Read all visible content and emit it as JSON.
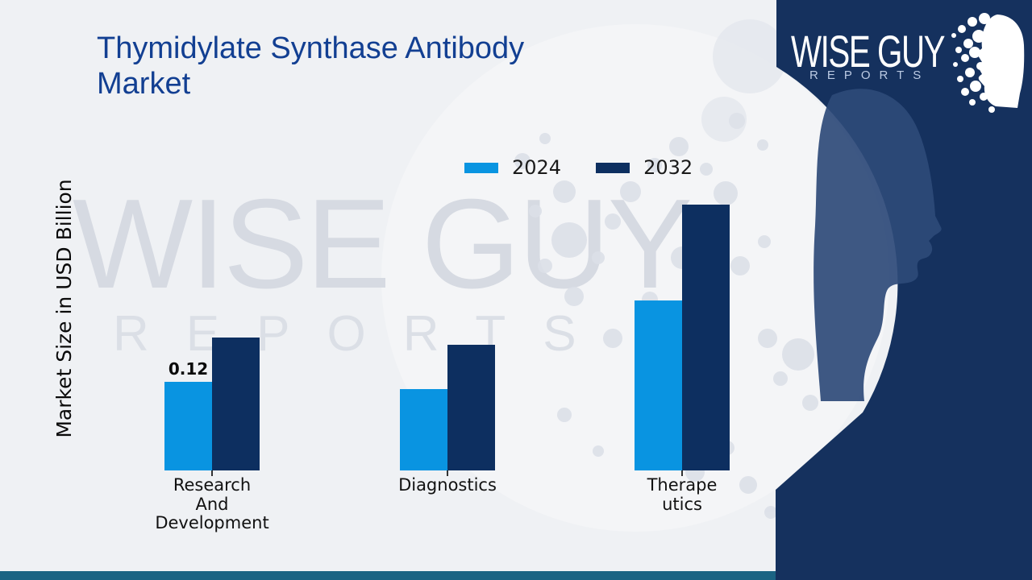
{
  "page": {
    "background": "#eff1f4",
    "accent_teal": "#1b6383",
    "panel_navy": "#15315e",
    "title_color": "#123f92"
  },
  "title_lines": [
    "Thymidylate Synthase Antibody",
    "Market"
  ],
  "ylabel": "Market Size in USD Billion",
  "watermark": {
    "line1": "WISE GUY",
    "line2": "REPORTS"
  },
  "brand": {
    "line1": "WISE GUY",
    "line2": "REPORTS"
  },
  "chart_data": {
    "type": "bar",
    "title": "Thymidylate Synthase Antibody Market",
    "ylabel": "Market Size in USD Billion",
    "unit": "USD Billion",
    "categories": [
      "Research\nAnd\nDevelopment",
      "Diagnostics",
      "Therape\nutics"
    ],
    "categories_flat": [
      "Research And Development",
      "Diagnostics",
      "Therapeutics"
    ],
    "series": [
      {
        "name": "2024",
        "color": "#0994e1",
        "values": [
          0.12,
          0.11,
          0.23
        ]
      },
      {
        "name": "2032",
        "color": "#0d2f60",
        "values": [
          0.18,
          0.17,
          0.36
        ]
      }
    ],
    "value_labels": [
      {
        "category_index": 0,
        "series_index": 0,
        "text": "0.12"
      }
    ],
    "ylim": [
      0,
      0.4
    ],
    "axes_visible": false,
    "grid": false,
    "legend_position": "top-center"
  }
}
